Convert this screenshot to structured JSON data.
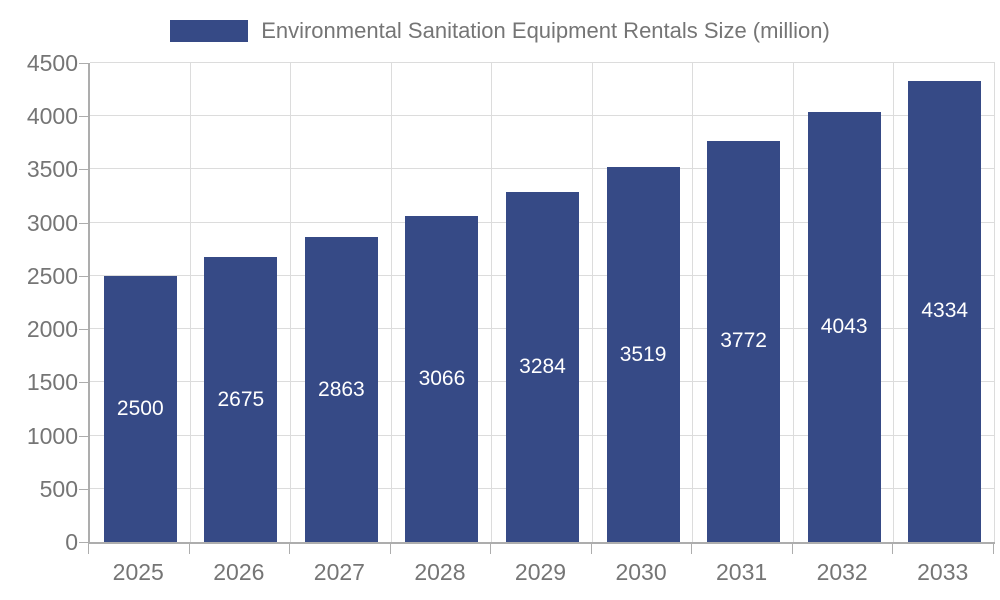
{
  "chart_data": {
    "type": "bar",
    "title": "Environmental Sanitation Equipment Rentals Size (million)",
    "categories": [
      "2025",
      "2026",
      "2027",
      "2028",
      "2029",
      "2030",
      "2031",
      "2032",
      "2033"
    ],
    "values": [
      2500,
      2675,
      2863,
      3066,
      3284,
      3519,
      3772,
      4043,
      4334
    ],
    "xlabel": "",
    "ylabel": "",
    "ylim": [
      0,
      4500
    ],
    "yticks": [
      0,
      500,
      1000,
      1500,
      2000,
      2500,
      3000,
      3500,
      4000,
      4500
    ],
    "grid": true,
    "legend_position": "top-center",
    "colors": {
      "bar": "#364a86",
      "bar_value_text": "#ffffff",
      "axis_text": "#757575",
      "title_text": "#757575",
      "gridline": "#dcdcdc",
      "axis_line": "#adadad",
      "background": "#ffffff"
    }
  }
}
